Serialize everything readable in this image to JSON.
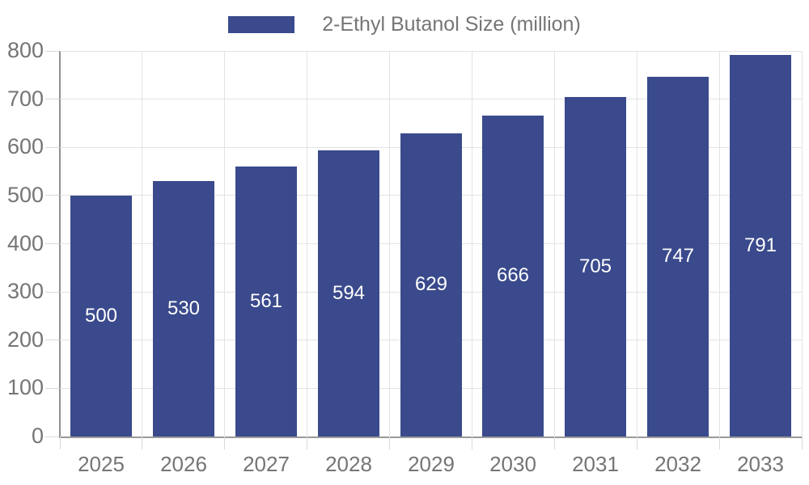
{
  "legend": {
    "label": "2-Ethyl Butanol Size (million)",
    "swatch_color": "#3A4A8C"
  },
  "chart_data": {
    "type": "bar",
    "title": "",
    "series_name": "2-Ethyl Butanol Size (million)",
    "categories": [
      "2025",
      "2026",
      "2027",
      "2028",
      "2029",
      "2030",
      "2031",
      "2032",
      "2033"
    ],
    "values": [
      500,
      530,
      561,
      594,
      629,
      666,
      705,
      747,
      791
    ],
    "value_labels": [
      "500",
      "530",
      "561",
      "594",
      "629",
      "666",
      "705",
      "747",
      "791"
    ],
    "xlabel": "",
    "ylabel": "",
    "ylim": [
      0,
      800
    ],
    "ytick_step": 100,
    "y_tick_labels": [
      "0",
      "100",
      "200",
      "300",
      "400",
      "500",
      "600",
      "700",
      "800"
    ],
    "grid": true,
    "legend_position": "top",
    "bar_color": "#3A4A8C",
    "value_label_color": "#ffffff",
    "axis_text_color": "#757575",
    "gridline_color": "#e3e3e3"
  }
}
